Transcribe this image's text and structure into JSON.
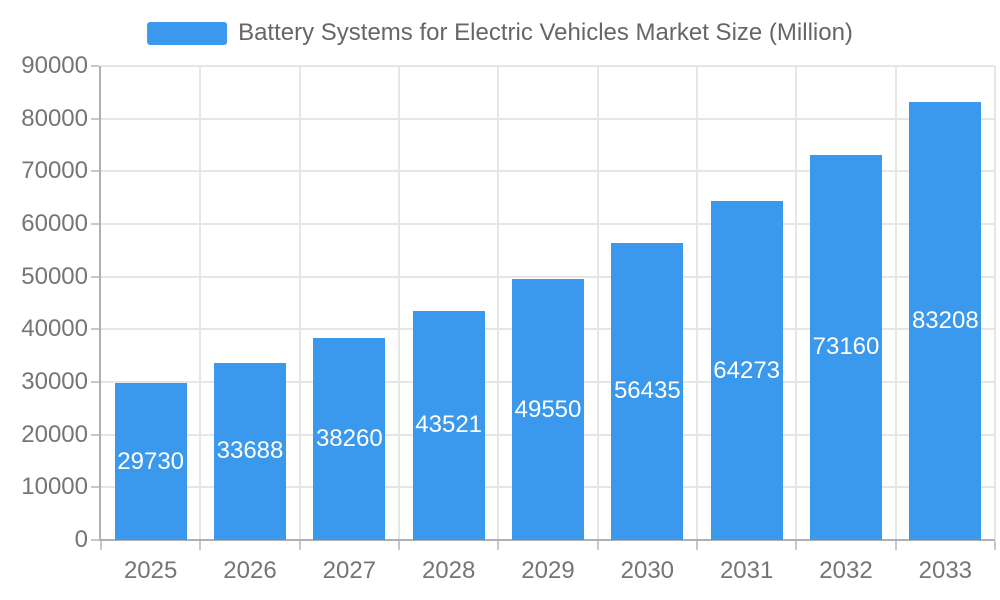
{
  "legend": {
    "label": "Battery Systems for Electric Vehicles Market Size (Million)"
  },
  "colors": {
    "bar": "#3A99EC",
    "bar_label": "#FFFFFF",
    "axis_label": "#757575",
    "legend_text": "#666666",
    "grid_line": "#E6E6E6",
    "axis_line": "#B0B0B0",
    "tick": "#C8C8C8",
    "background": "#FFFFFF"
  },
  "chart_data": {
    "type": "bar",
    "title": "Battery Systems for Electric Vehicles Market Size (Million)",
    "categories": [
      "2025",
      "2026",
      "2027",
      "2028",
      "2029",
      "2030",
      "2031",
      "2032",
      "2033"
    ],
    "values": [
      29730,
      33688,
      38260,
      43521,
      49550,
      56435,
      64273,
      73160,
      83208
    ],
    "series_name": "Battery Systems for Electric Vehicles Market Size (Million)",
    "xlabel": "",
    "ylabel": "",
    "ylim": [
      0,
      90000
    ],
    "ytick_step": 10000,
    "ytick_labels": [
      "0",
      "10000",
      "20000",
      "30000",
      "40000",
      "50000",
      "60000",
      "70000",
      "80000",
      "90000"
    ],
    "grid": true,
    "legend_position": "top",
    "value_labels": "inside-center"
  }
}
